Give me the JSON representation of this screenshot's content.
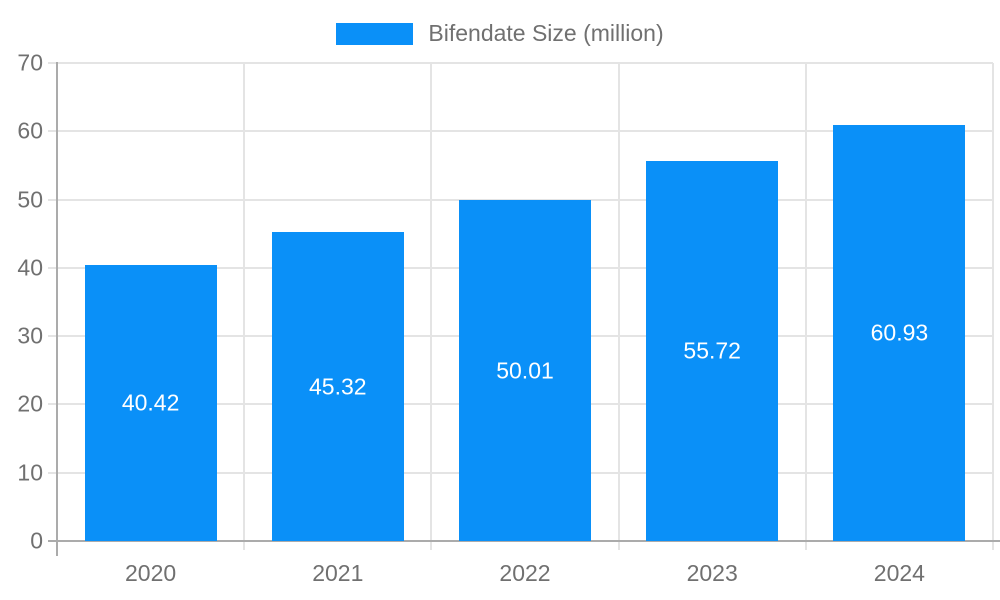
{
  "chart": {
    "legend": {
      "label": "Bifendate Size (million)"
    }
  },
  "chart_data": {
    "type": "bar",
    "title": "",
    "categories": [
      "2020",
      "2021",
      "2022",
      "2023",
      "2024"
    ],
    "series": [
      {
        "name": "Bifendate Size (million)",
        "values": [
          40.42,
          45.32,
          50.01,
          55.72,
          60.93
        ]
      }
    ],
    "value_labels": [
      "40.42",
      "45.32",
      "50.01",
      "55.72",
      "60.93"
    ],
    "xlabel": "",
    "ylabel": "",
    "ylim": [
      0,
      70
    ],
    "yticks": [
      0,
      10,
      20,
      30,
      40,
      50,
      60,
      70
    ],
    "grid": "both",
    "legend_position": "top-center"
  },
  "colors": {
    "bar": "#0a90f8",
    "axis_line": "#ababab",
    "gridline": "#e4e4e4",
    "axis_text": "#707070",
    "value_label": "#ffffff",
    "background": "#ffffff"
  }
}
